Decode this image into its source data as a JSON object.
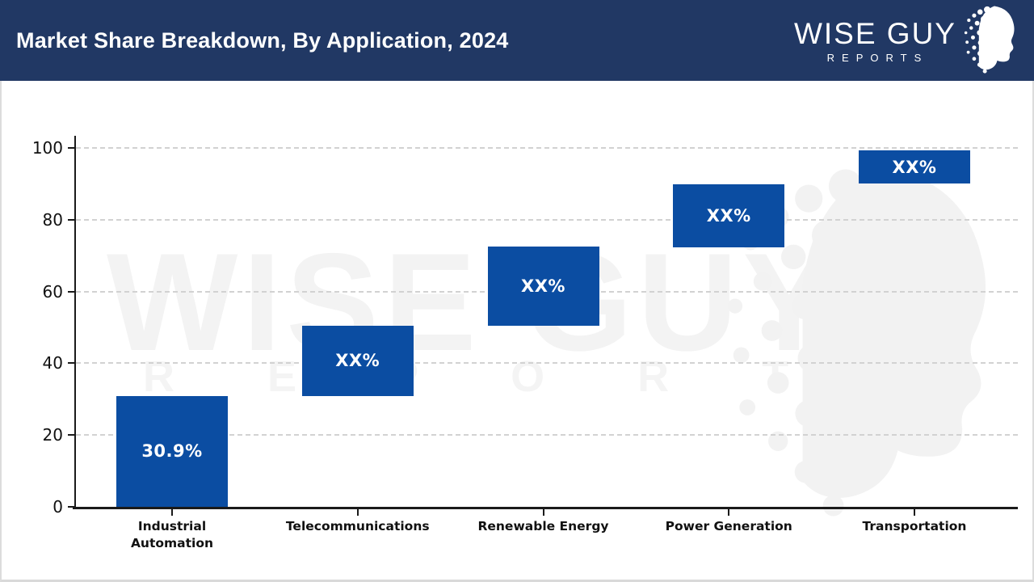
{
  "header": {
    "title": "Market Share Breakdown, By Application, 2024",
    "logo": {
      "line1": "WISE GUY",
      "line2": "REPORTS"
    }
  },
  "watermark": {
    "line1": "WISE GUY",
    "line2": "REPORTS"
  },
  "colors": {
    "header_bg": "#213864",
    "bar": "#0b4da2",
    "grid": "#d2d2d2",
    "watermark": "#f3f3f3"
  },
  "chart_data": {
    "type": "bar",
    "subtype": "waterfall",
    "title": "Market Share Breakdown, By Application, 2024",
    "xlabel": "",
    "ylabel": "",
    "ylim": [
      0,
      105
    ],
    "yticks": [
      0,
      20,
      40,
      60,
      80,
      100
    ],
    "grid": true,
    "legend": false,
    "categories": [
      "Industrial Automation",
      "Telecommunications",
      "Renewable Energy",
      "Power Generation",
      "Transportation"
    ],
    "category_label_lines": [
      [
        "Industrial",
        "Automation"
      ],
      [
        "Telecommunications"
      ],
      [
        "Renewable Energy"
      ],
      [
        "Power Generation"
      ],
      [
        "Transportation"
      ]
    ],
    "segments": [
      {
        "category": "Industrial Automation",
        "start": 0,
        "end": 30.9,
        "label": "30.9%"
      },
      {
        "category": "Telecommunications",
        "start": 30.9,
        "end": 50.5,
        "label": "XX%"
      },
      {
        "category": "Renewable Energy",
        "start": 50.5,
        "end": 72.5,
        "label": "XX%"
      },
      {
        "category": "Power Generation",
        "start": 72.3,
        "end": 89.9,
        "label": "XX%"
      },
      {
        "category": "Transportation",
        "start": 90.1,
        "end": 99.3,
        "label": "XX%"
      }
    ]
  }
}
